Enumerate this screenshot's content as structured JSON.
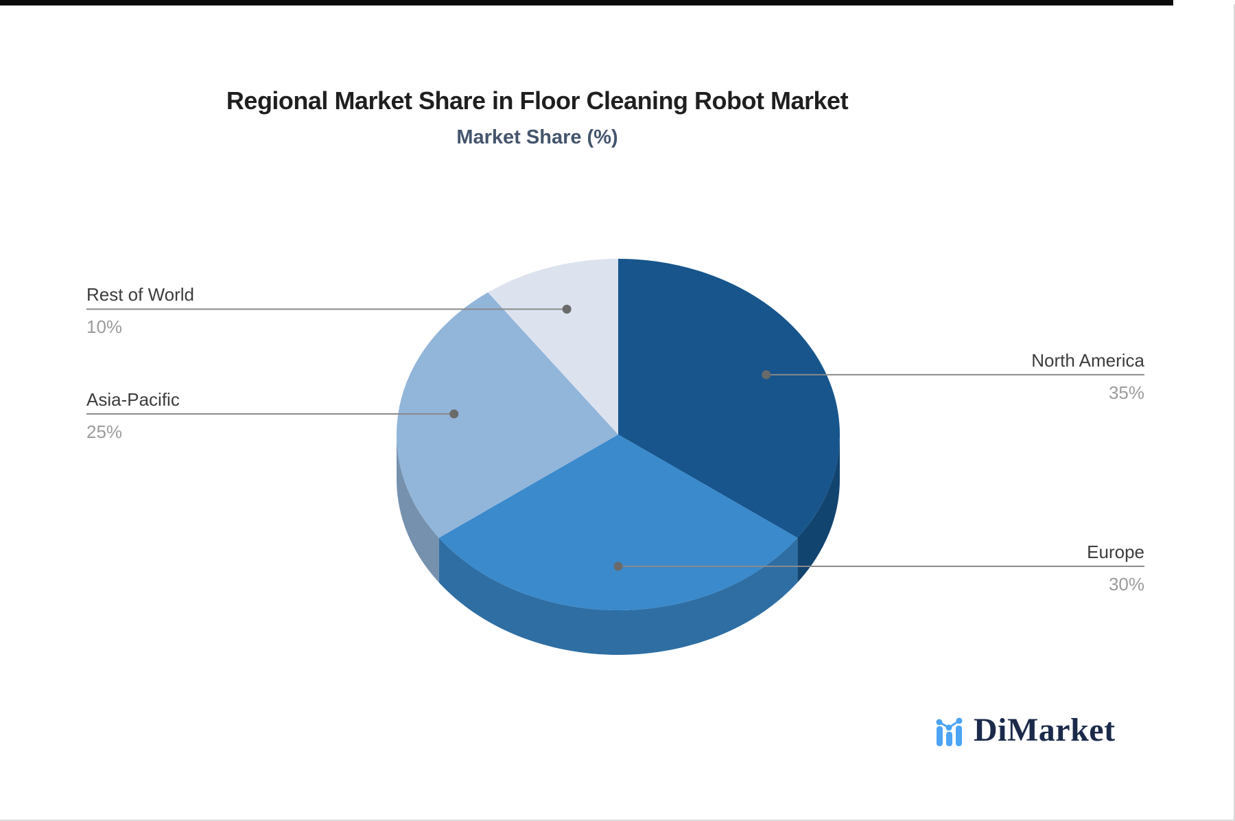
{
  "page": {
    "background": "#FFFFFF",
    "top_bar_color": "#0B0B0B"
  },
  "chart_data": {
    "type": "pie",
    "style": "3d",
    "title": "Regional Market Share in Floor Cleaning Robot Market",
    "subtitle": "Market Share (%)",
    "unit": "%",
    "direction": "clockwise",
    "start_angle": "12-o-clock",
    "legend_position": "callout-labels",
    "grid": false,
    "segments": [
      {
        "name": "North America",
        "value": 35,
        "display_value": "35%",
        "color": "#17558C"
      },
      {
        "name": "Europe",
        "value": 30,
        "display_value": "30%",
        "color": "#3A8ACC"
      },
      {
        "name": "Asia-Pacific",
        "value": 25,
        "display_value": "25%",
        "color": "#92B5DA"
      },
      {
        "name": "Rest of World",
        "value": 10,
        "display_value": "10%",
        "color": "#DCE3EF"
      }
    ],
    "theme": {
      "title_color": "#1F1F1F",
      "subtitle_color": "#44546D",
      "label_color": "#3C3C3C",
      "value_color": "#9B9B9B",
      "leader_line_color": "#8A8A8A",
      "leader_dot_color": "#6A6A6A"
    }
  },
  "brand": {
    "name": "DiMarket",
    "icon": "bar-chart-logo-icon",
    "text_color": "#1B2A4A",
    "icon_color": "#4CA4F3"
  }
}
